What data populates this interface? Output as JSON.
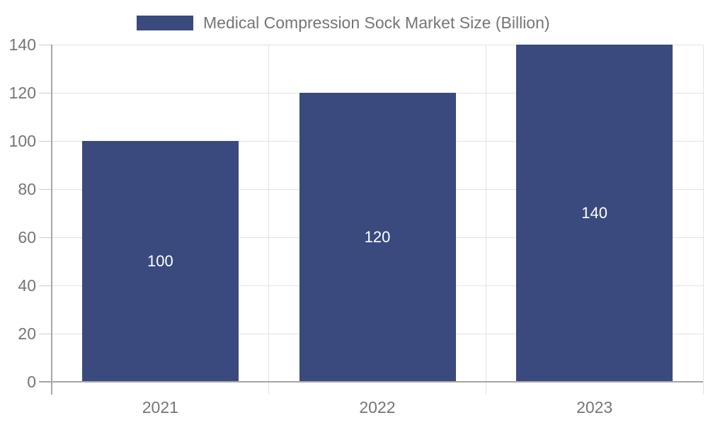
{
  "chart_data": {
    "type": "bar",
    "title": "Medical Compression Sock Market Size (Billion)",
    "categories": [
      "2021",
      "2022",
      "2023"
    ],
    "values": [
      100,
      120,
      140
    ],
    "series": [
      {
        "name": "Medical Compression Sock Market Size (Billion)",
        "values": [
          100,
          120,
          140
        ]
      }
    ],
    "bar_value_labels": [
      "100",
      "120",
      "140"
    ],
    "xlabel": "",
    "ylabel": "",
    "ylim": [
      0,
      140
    ],
    "yticks": [
      0,
      20,
      40,
      60,
      80,
      100,
      120,
      140
    ],
    "grid": true,
    "legend_position": "top",
    "colors": {
      "bar": "#3A4A7E",
      "bar_value_text": "#ffffff",
      "grid_line": "#e3e3e3",
      "tick_mark": "#cccccc",
      "axis_line": "#a6a6a6",
      "axis_text": "#757575",
      "legend_text": "#757575",
      "background": "#ffffff"
    }
  }
}
